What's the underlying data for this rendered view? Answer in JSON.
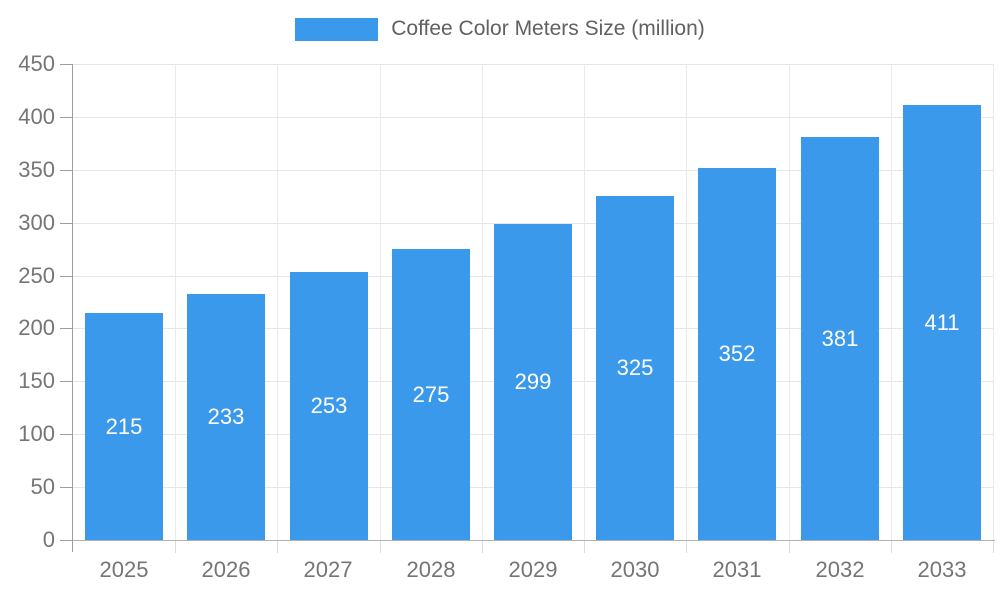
{
  "legend": {
    "label": "Coffee Color Meters Size (million)"
  },
  "chart_data": {
    "type": "bar",
    "title": "Coffee Color Meters Size (million)",
    "legend_position": "top-center",
    "categories": [
      "2025",
      "2026",
      "2027",
      "2028",
      "2029",
      "2030",
      "2031",
      "2032",
      "2033"
    ],
    "values": [
      215,
      233,
      253,
      275,
      299,
      325,
      352,
      381,
      411
    ],
    "value_labels": [
      "215",
      "233",
      "253",
      "275",
      "299",
      "325",
      "352",
      "381",
      "411"
    ],
    "xlabel": "",
    "ylabel": "",
    "ylim": [
      0,
      450
    ],
    "ytick_step": 50,
    "ytick_labels": [
      "0",
      "50",
      "100",
      "150",
      "200",
      "250",
      "300",
      "350",
      "400",
      "450"
    ],
    "grid": true,
    "colors": {
      "bar": "#3B99EC",
      "value_label": "#FFFFFF",
      "axis_label": "#757575",
      "legend_text": "#616161",
      "grid_line": "#E6E6E6",
      "split_line": "#EBEBEB",
      "y_axis_line": "#9E9E9E",
      "x_axis_line": "#B0B0B0",
      "x_tick": "#DCDCDC"
    }
  }
}
